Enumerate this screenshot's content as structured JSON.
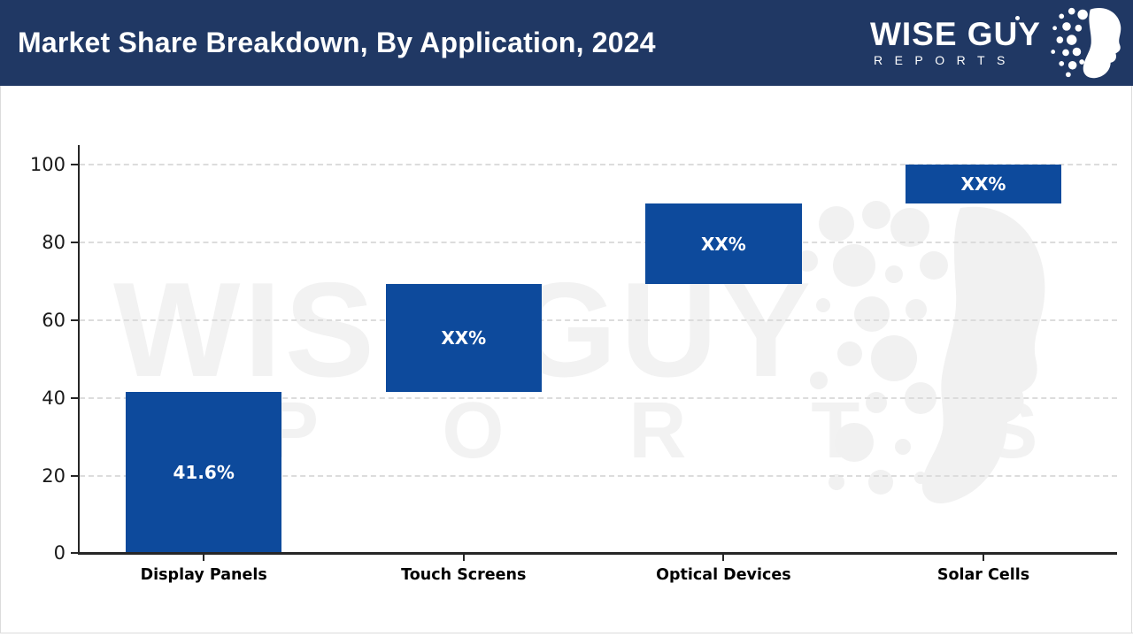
{
  "header": {
    "title": "Market Share Breakdown, By Application, 2024",
    "logo": {
      "line1": "WISE GUY",
      "line2": "REPORTS"
    }
  },
  "watermark": {
    "line1": "WISE GUY",
    "line2": "P O R T S"
  },
  "chart_data": {
    "type": "bar",
    "subtype": "waterfall-floating-bars",
    "title": "Market Share Breakdown, By Application, 2024",
    "xlabel": "",
    "ylabel": "",
    "categories": [
      "Display Panels",
      "Touch Screens",
      "Optical Devices",
      "Solar Cells"
    ],
    "segments": [
      {
        "category": "Display Panels",
        "start": 0,
        "end": 41.6,
        "label": "41.6%"
      },
      {
        "category": "Touch Screens",
        "start": 41.6,
        "end": 69.2,
        "label": "XX%"
      },
      {
        "category": "Optical Devices",
        "start": 69.2,
        "end": 90,
        "label": "XX%"
      },
      {
        "category": "Solar Cells",
        "start": 90,
        "end": 100,
        "label": "XX%"
      }
    ],
    "yticks": [
      0,
      20,
      40,
      60,
      80,
      100
    ],
    "ylim": [
      0,
      105
    ],
    "grid": "horizontal-dashed",
    "legend": "none"
  },
  "colors": {
    "header_bg": "#203864",
    "bar": "#0d4a9c",
    "bar_label": "#ffffff",
    "axis": "#262626",
    "tick_label": "#1a1a1a",
    "gridline": "#dcdcdc",
    "watermark": "#f2f2f2",
    "frame": "#dcdcdc"
  },
  "icons": {
    "logo_face": "dotted-head-profile-icon"
  }
}
